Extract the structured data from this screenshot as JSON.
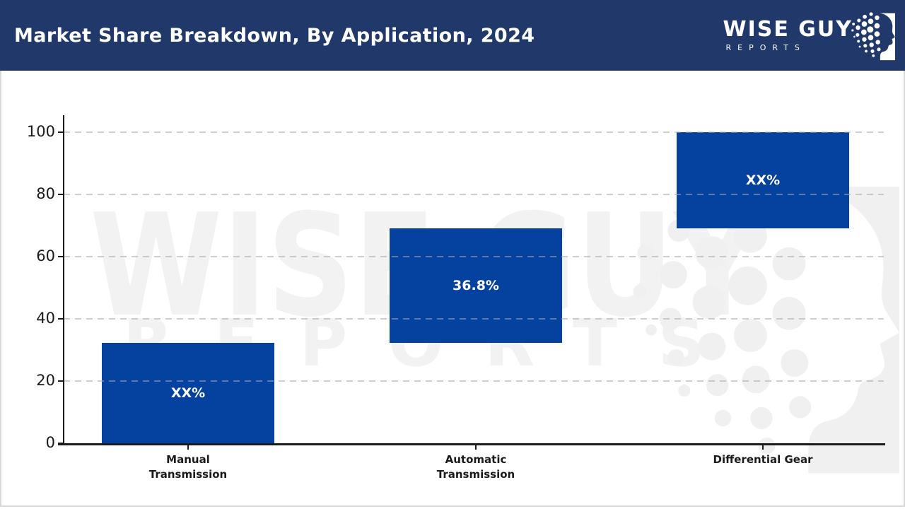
{
  "header": {
    "title": "Market Share Breakdown, By Application, 2024",
    "bg_color": "#20386a",
    "logo": {
      "line1": "WISE GUY",
      "line2": "REPORTS"
    }
  },
  "watermark": {
    "line1": "WISE GUY",
    "line2": "REPORTS",
    "color": "#f2f2f2"
  },
  "chart_data": {
    "type": "bar",
    "subtype": "waterfall",
    "title": "Market Share Breakdown, By Application, 2024",
    "categories": [
      [
        "Manual",
        "Transmission"
      ],
      [
        "Automatic",
        "Transmission"
      ],
      [
        "Differential Gear"
      ]
    ],
    "bars": [
      {
        "base": 0,
        "value": 32.3,
        "label": "XX%"
      },
      {
        "base": 32.3,
        "value": 36.8,
        "label": "36.8%"
      },
      {
        "base": 69.1,
        "value": 30.9,
        "label": "XX%"
      }
    ],
    "yticks": [
      0,
      20,
      40,
      60,
      80,
      100
    ],
    "ylim": [
      0,
      105
    ],
    "grid": true,
    "grid_style": "dashed",
    "legend": false,
    "bar_color": "#05419e",
    "bar_label_color": "#ffffff",
    "axis_color": "#1a1a1a"
  }
}
